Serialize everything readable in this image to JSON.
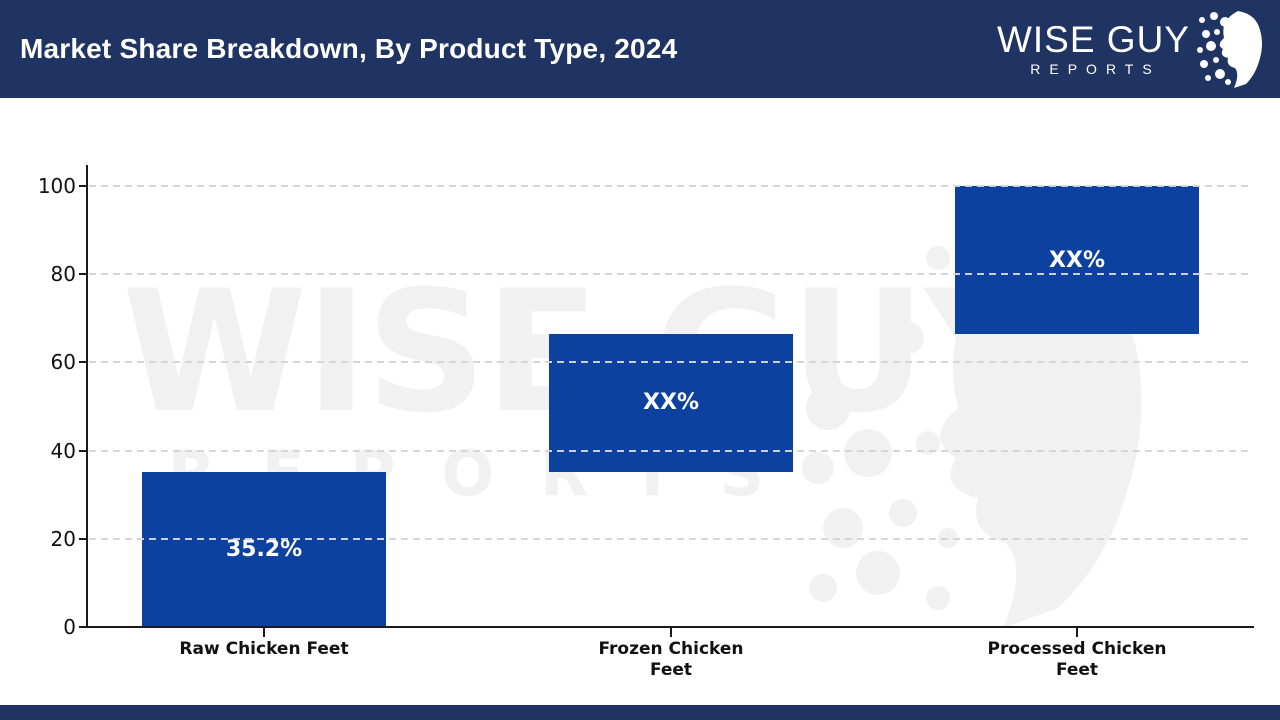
{
  "header": {
    "title": "Market Share Breakdown, By Product Type, 2024",
    "logo": {
      "line1": "WISE GUY",
      "line2": "REPORTS"
    }
  },
  "watermark": {
    "line1": "WISE GUY",
    "line2": "REPORTS"
  },
  "colors": {
    "header_bg": "#1f3462",
    "footer_bg": "#1f3462",
    "bar_fill": "#0c419f",
    "bar_label": "#ffffff",
    "gridline": "#d5d5d5",
    "axis": "#1a1a1a",
    "watermark": "#f1f1f1"
  },
  "chart_data": {
    "type": "bar",
    "subtype": "waterfall",
    "title": "Market Share Breakdown, By Product Type, 2024",
    "xlabel": "",
    "ylabel": "",
    "ylim": [
      0,
      105
    ],
    "yticks": [
      0,
      20,
      40,
      60,
      80,
      100
    ],
    "grid": "horizontal dashed",
    "legend": "none",
    "categories": [
      "Raw Chicken Feet",
      "Frozen Chicken\nFeet",
      "Processed Chicken\nFeet"
    ],
    "segments": [
      {
        "category": "Raw Chicken Feet",
        "start": 0,
        "end": 35.2,
        "label": "35.2%"
      },
      {
        "category": "Frozen Chicken Feet",
        "start": 35.2,
        "end": 66.4,
        "label": "XX%"
      },
      {
        "category": "Processed Chicken Feet",
        "start": 66.4,
        "end": 100,
        "label": "XX%"
      }
    ]
  }
}
